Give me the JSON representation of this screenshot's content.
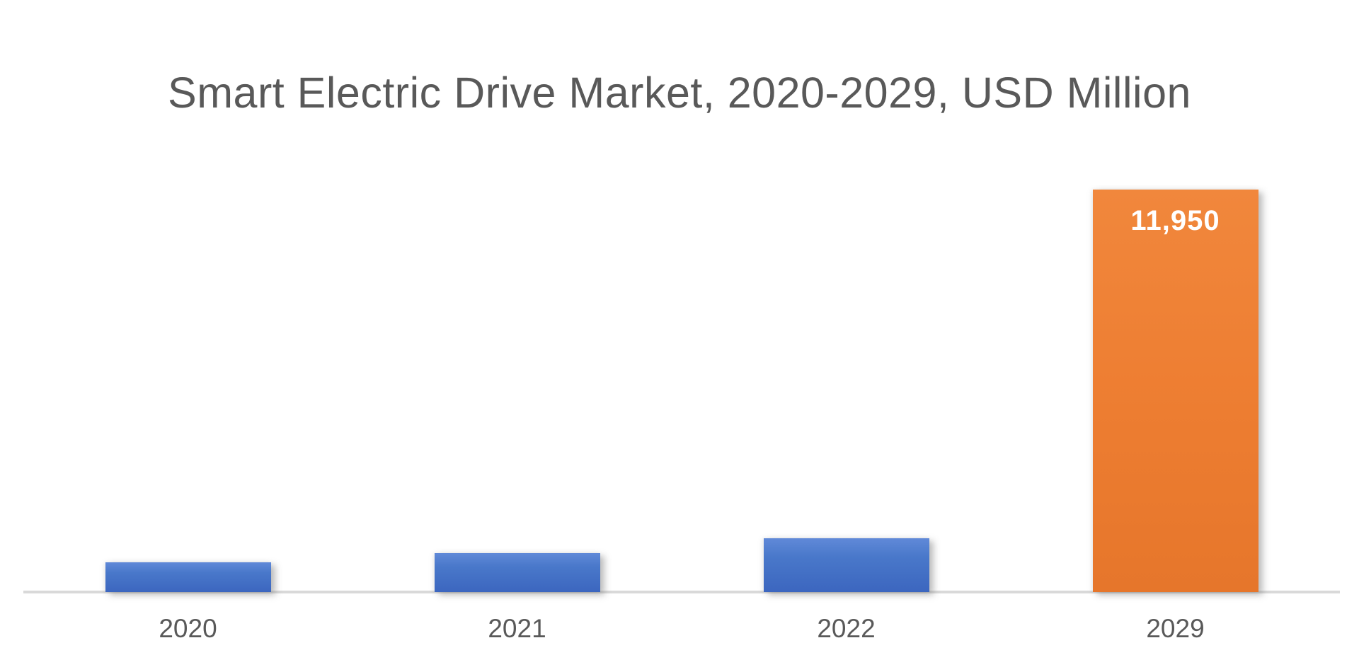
{
  "chart_data": {
    "type": "bar",
    "title": "Smart Electric Drive Market, 2020-2029, USD Million",
    "categories": [
      "2020",
      "2021",
      "2022",
      "2029"
    ],
    "values": [
      880,
      1150,
      1590,
      11950
    ],
    "data_labels": [
      "",
      "",
      "",
      "11,950"
    ],
    "highlight_index": 3,
    "bar_colors": [
      "#4472C4",
      "#4472C4",
      "#4472C4",
      "#ED7D31"
    ],
    "ylim": [
      0,
      12200
    ],
    "xlabel": "",
    "ylabel": "",
    "grid": false,
    "legend": false,
    "y_axis_visible": false,
    "x_axis_line_color": "#D9D9D9",
    "title_color": "#595959",
    "tick_label_color": "#595959",
    "data_label_color": "#FFFFFF",
    "background_color": "#FFFFFF"
  }
}
